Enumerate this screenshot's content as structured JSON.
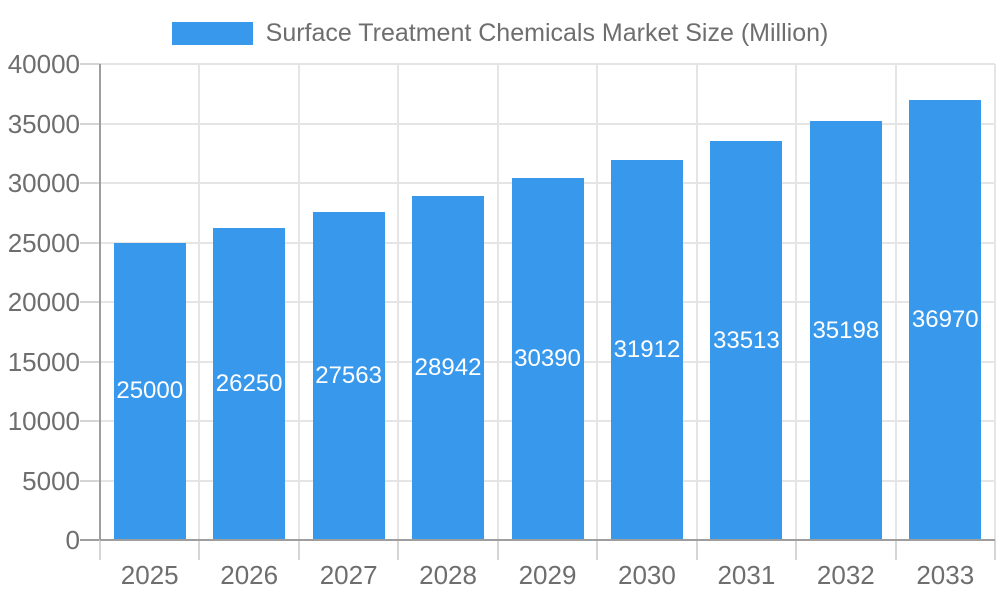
{
  "chart_data": {
    "type": "bar",
    "title": "Surface Treatment Chemicals Market Size (Million)",
    "categories": [
      "2025",
      "2026",
      "2027",
      "2028",
      "2029",
      "2030",
      "2031",
      "2032",
      "2033"
    ],
    "values": [
      25000,
      26250,
      27563,
      28942,
      30390,
      31912,
      33513,
      35198,
      36970
    ],
    "xlabel": "",
    "ylabel": "",
    "ylim": [
      0,
      40000
    ],
    "ytick_interval": 5000,
    "yticks": [
      "0",
      "5000",
      "10000",
      "15000",
      "20000",
      "25000",
      "30000",
      "35000",
      "40000"
    ],
    "grid": true,
    "legend_position": "top",
    "datalabels": "white numbers centered inside bars"
  },
  "legend": {
    "label": "Surface Treatment Chemicals Market Size (Million)"
  },
  "colors": {
    "bar": "#3899EC",
    "grid": "#E5E5E5",
    "axis": "#9E9E9E",
    "tick": "#D5D5D5",
    "tick_label": "#6E6E6E",
    "legend_text": "#6E6E6E",
    "bar_label": "#FFFFFF",
    "background": "#FFFFFF"
  }
}
